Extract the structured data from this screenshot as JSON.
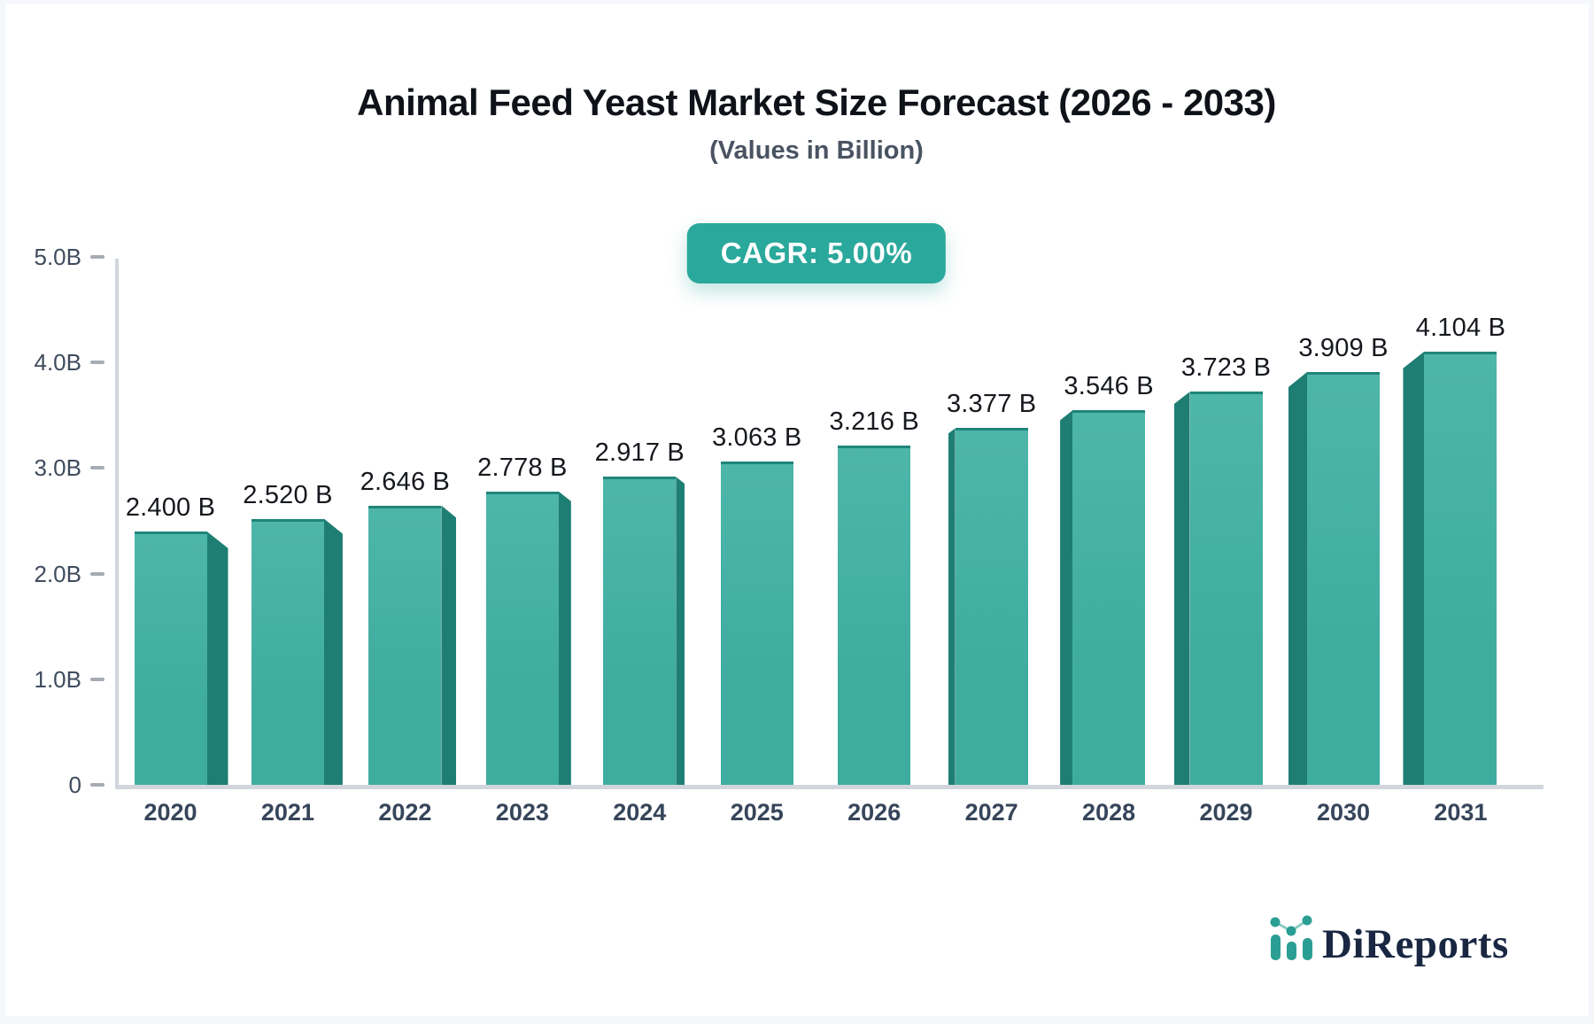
{
  "chart_data": {
    "type": "bar",
    "title": "Animal Feed Yeast Market Size Forecast (2026 - 2033)",
    "subtitle": "(Values in Billion)",
    "annotation": "CAGR: 5.00%",
    "categories": [
      "2020",
      "2021",
      "2022",
      "2023",
      "2024",
      "2025",
      "2026",
      "2027",
      "2028",
      "2029",
      "2030",
      "2031"
    ],
    "values": [
      2.4,
      2.52,
      2.646,
      2.778,
      2.917,
      3.063,
      3.216,
      3.377,
      3.546,
      3.723,
      3.909,
      4.104
    ],
    "value_labels": [
      "2.400 B",
      "2.520 B",
      "2.646 B",
      "2.778 B",
      "2.917 B",
      "3.063 B",
      "3.216 B",
      "3.377 B",
      "3.546 B",
      "3.723 B",
      "3.909 B",
      "4.104 B"
    ],
    "xlabel": "",
    "ylabel": "",
    "ylim": [
      0,
      5.0
    ],
    "yticks": [
      {
        "value": 0,
        "label": "0"
      },
      {
        "value": 1,
        "label": "1.0B"
      },
      {
        "value": 2,
        "label": "2.0B"
      },
      {
        "value": 3,
        "label": "3.0B"
      },
      {
        "value": 4,
        "label": "4.0B"
      },
      {
        "value": 5,
        "label": "5.0B"
      }
    ],
    "grid": false,
    "legend": "none",
    "colors": {
      "bar_face": "#3FACA0",
      "bar_face_top": "#4DB6A9",
      "bar_side": "#1F7E74",
      "bar_top_edge": "#20857A",
      "badge_bg": "#2AA89C",
      "axis_line": "#D2D6DC",
      "tick_dash": "#A6ABB4"
    }
  },
  "footer": {
    "brand": "DiReports"
  }
}
